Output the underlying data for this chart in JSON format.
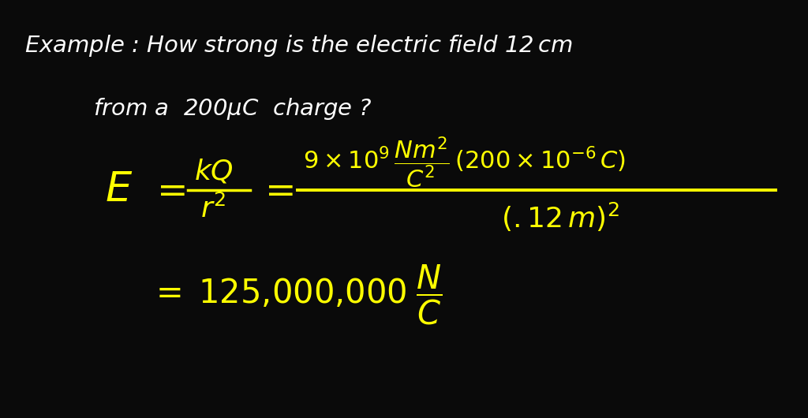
{
  "bg_color": "#0a0a0a",
  "white_color": "#ffffff",
  "yellow_color": "#ffff00",
  "fig_width": 10.24,
  "fig_height": 5.3,
  "dpi": 100
}
